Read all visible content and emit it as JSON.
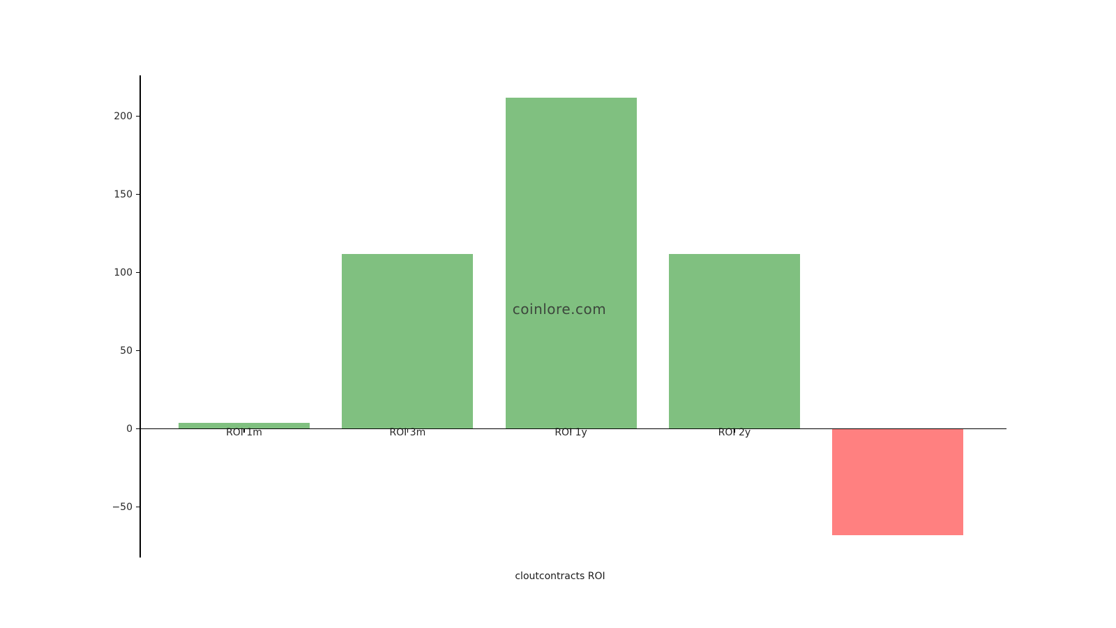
{
  "page": {
    "background_color": "#ffffff",
    "axis_color": "#000000",
    "text_color": "#262626"
  },
  "watermark": {
    "text": "coinlore.com",
    "color": "#3c463c"
  },
  "footer_title": {
    "text": "cloutcontracts ROI"
  },
  "chart_data": {
    "type": "bar",
    "title": "cloutcontracts ROI",
    "xlabel": "",
    "ylabel": "",
    "categories": [
      "ROI 1m",
      "ROI 3m",
      "ROI 1y",
      "ROI 2y",
      ""
    ],
    "values": [
      4,
      112,
      212,
      112,
      -68
    ],
    "bar_colors": [
      "#80c080",
      "#80c080",
      "#80c080",
      "#80c080",
      "#ff8080"
    ],
    "positive_color": "#80c080",
    "negative_color": "#ff8080",
    "y_ticks": [
      200,
      150,
      100,
      50,
      0,
      -50
    ],
    "y_tick_labels": [
      "200",
      "150",
      "100",
      "50",
      "0",
      "−50"
    ],
    "ylim": [
      -82,
      228
    ],
    "grid": false,
    "legend_position": "none",
    "annotations": [
      "coinlore.com"
    ],
    "notes": "Fifth bar (negative, red) has no visible x tick or label; axis zero line drawn over bars."
  }
}
